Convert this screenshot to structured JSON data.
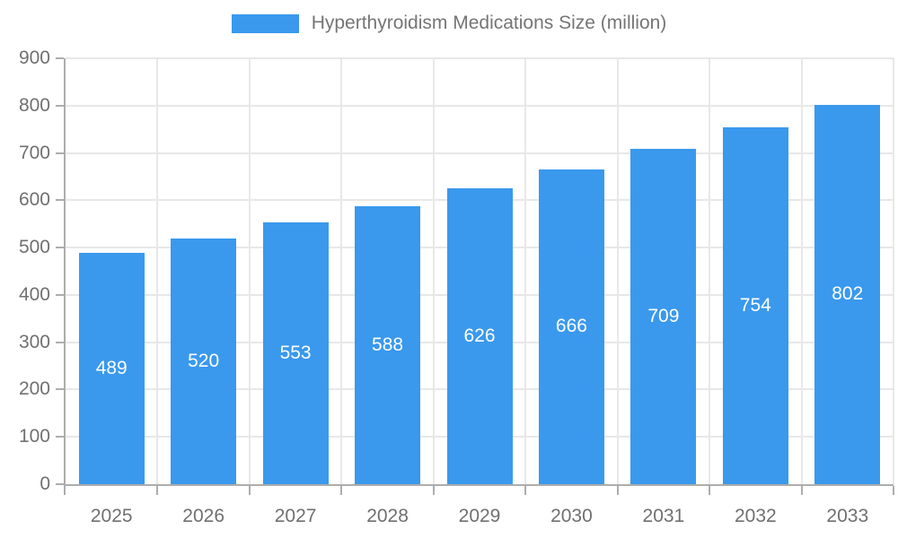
{
  "page": {
    "background": "#ffffff"
  },
  "legend": {
    "label": "Hyperthyroidism Medications Size (million)"
  },
  "chart_data": {
    "type": "bar",
    "title": "Hyperthyroidism Medications Size (million)",
    "categories": [
      "2025",
      "2026",
      "2027",
      "2028",
      "2029",
      "2030",
      "2031",
      "2032",
      "2033"
    ],
    "values": [
      489,
      520,
      553,
      588,
      626,
      666,
      709,
      754,
      802
    ],
    "xlabel": "",
    "ylabel": "",
    "ylim": [
      0,
      900
    ],
    "ytick_step": 100,
    "yticks": [
      0,
      100,
      200,
      300,
      400,
      500,
      600,
      700,
      800,
      900
    ],
    "grid": true,
    "value_labels_inside_bars": true,
    "legend_position": "top",
    "colors": {
      "bar": "#3a99ed",
      "bar_value_label": "#ffffff",
      "axis_line": "#adadad",
      "gridline": "#e8e8e8",
      "tick_label": "#707070",
      "legend_text": "#757575"
    }
  }
}
